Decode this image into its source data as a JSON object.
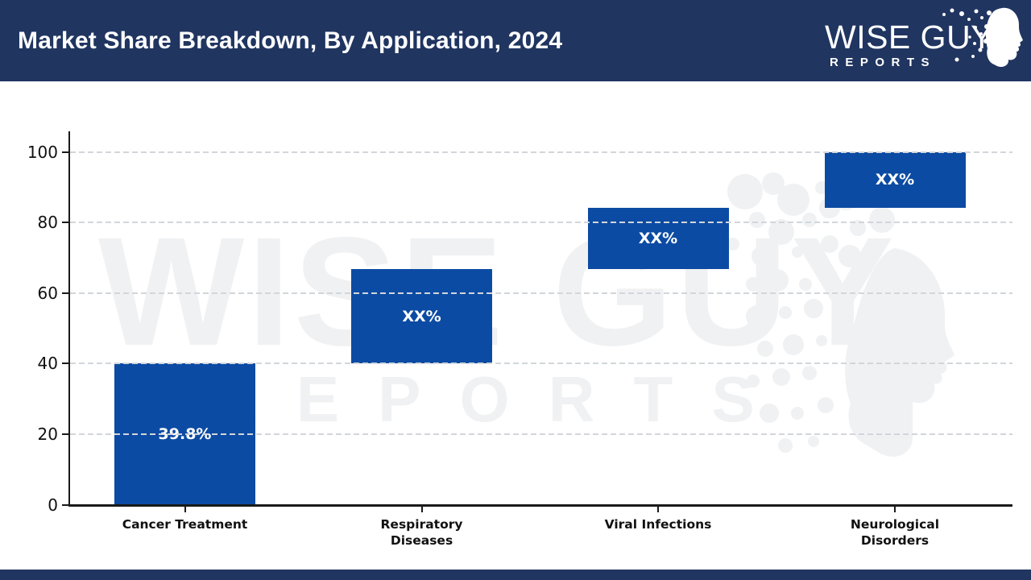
{
  "header": {
    "title": "Market Share Breakdown, By Application, 2024",
    "logo": {
      "line1": "WISE GUY",
      "line2": "REPORTS"
    }
  },
  "watermark": {
    "line1": "WISE GUY",
    "line2": "REPORTS"
  },
  "chart_data": {
    "type": "bar",
    "subtype": "waterfall",
    "title": "Market Share Breakdown, By Application, 2024",
    "categories": [
      "Cancer Treatment",
      "Respiratory Diseases",
      "Viral Infections",
      "Neurological Disorders"
    ],
    "series": [
      {
        "name": "Market Share",
        "segments": [
          {
            "category": "Cancer Treatment",
            "label": "39.8%",
            "start": 0,
            "end": 40
          },
          {
            "category": "Respiratory Diseases",
            "label": "XX%",
            "start": 40,
            "end": 66.8
          },
          {
            "category": "Viral Infections",
            "label": "XX%",
            "start": 66.8,
            "end": 84.2
          },
          {
            "category": "Neurological Disorders",
            "label": "XX%",
            "start": 84.2,
            "end": 100
          }
        ]
      }
    ],
    "xlabel": "",
    "ylabel": "",
    "ylim": [
      0,
      105
    ],
    "yticks": [
      0,
      20,
      40,
      60,
      80,
      100
    ],
    "grid": "horizontal-dashed",
    "legend": "none",
    "bar_color": "#0c4ba3",
    "bar_label_color": "#ffffff"
  },
  "colors": {
    "header_bg": "#203560",
    "footer_bg": "#203560",
    "bar": "#0c4ba3",
    "grid": "#d2d6db",
    "axis": "#1a1a1a",
    "watermark": "#f0f1f3",
    "title_text": "#ffffff"
  }
}
